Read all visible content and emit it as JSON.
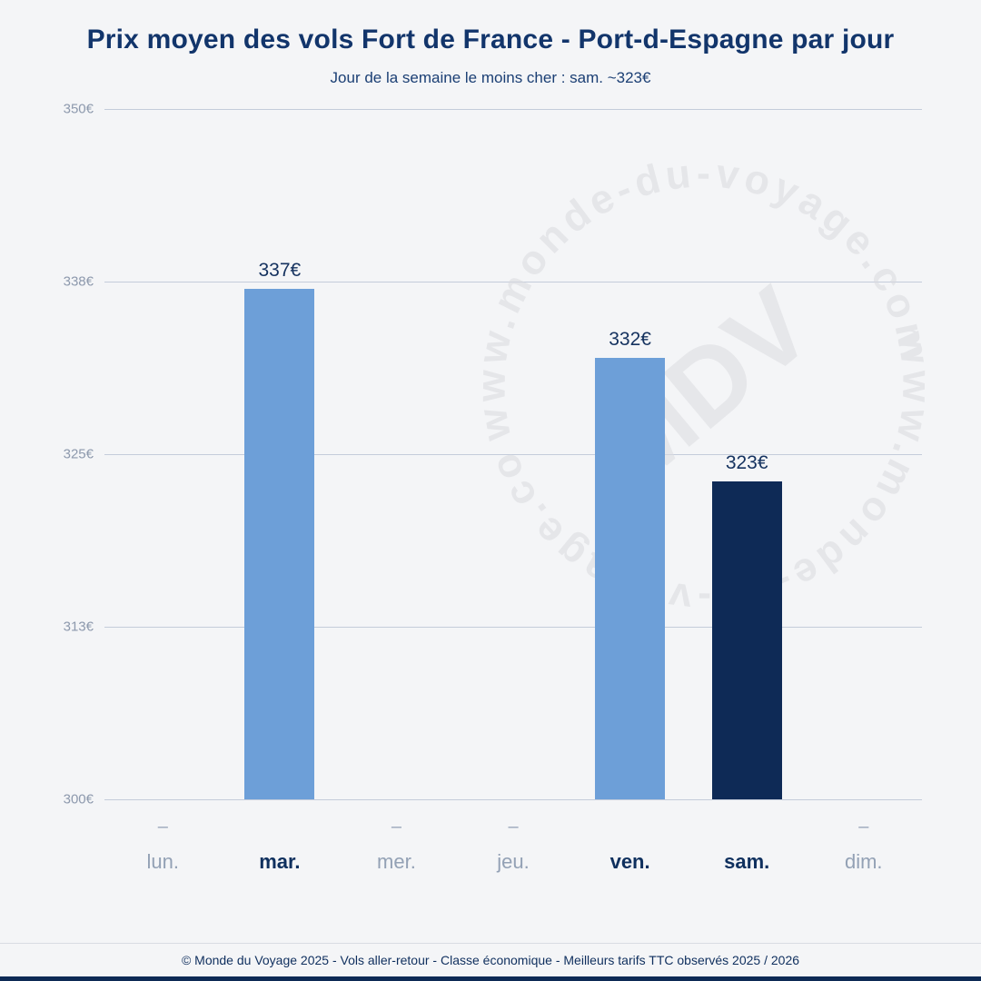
{
  "header": {
    "title": "Prix moyen des vols Fort de France - Port-d-Espagne par jour",
    "subtitle": "Jour de la semaine le moins cher : sam. ~323€"
  },
  "chart_data": {
    "type": "bar",
    "title": "Prix moyen des vols Fort de France - Port-d-Espagne par jour",
    "xlabel": "",
    "ylabel": "",
    "categories": [
      "lun.",
      "mar.",
      "mer.",
      "jeu.",
      "ven.",
      "sam.",
      "dim."
    ],
    "values": [
      null,
      337,
      null,
      null,
      332,
      323,
      null
    ],
    "bar_labels": [
      "",
      "337€",
      "",
      "",
      "332€",
      "323€",
      ""
    ],
    "no_data_marker": "–",
    "highlight_index": 5,
    "ylim": [
      300,
      350
    ],
    "yticks": [
      {
        "label": "350€",
        "value": 350
      },
      {
        "label": "338€",
        "value": 337.5
      },
      {
        "label": "325€",
        "value": 325
      },
      {
        "label": "313€",
        "value": 312.5
      },
      {
        "label": "300€",
        "value": 300
      }
    ],
    "grid": true,
    "legend": "none",
    "currency": "€",
    "colors": {
      "bar": "#6d9fd8",
      "bar_highlight": "#0e2a56",
      "title": "#12356b",
      "grid": "#c4ccda"
    }
  },
  "watermark": {
    "circle_text": "www.monde-du-voyage.com",
    "center_text": "MDV"
  },
  "footer": {
    "text": "© Monde du Voyage 2025 - Vols aller-retour - Classe économique - Meilleurs tarifs TTC observés 2025 / 2026"
  }
}
